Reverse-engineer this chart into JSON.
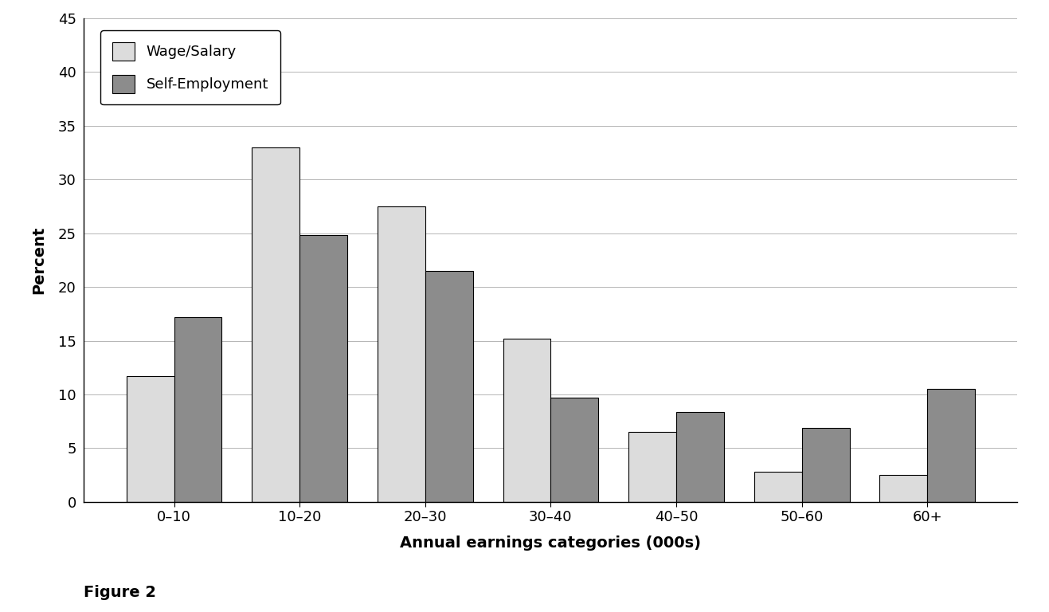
{
  "categories": [
    "0–10",
    "10–20",
    "20–30",
    "30–40",
    "40–50",
    "50–60",
    "60+"
  ],
  "wage_salary": [
    11.7,
    33.0,
    27.5,
    15.2,
    6.5,
    2.8,
    2.5
  ],
  "self_employment": [
    17.2,
    24.8,
    21.5,
    9.7,
    8.4,
    6.9,
    10.5
  ],
  "wage_color": "#dcdcdc",
  "self_color": "#8c8c8c",
  "xlabel": "Annual earnings categories (000s)",
  "ylabel": "Percent",
  "ylim": [
    0,
    45
  ],
  "yticks": [
    0,
    5,
    10,
    15,
    20,
    25,
    30,
    35,
    40,
    45
  ],
  "legend_labels": [
    "Wage/Salary",
    "Self-Employment"
  ],
  "figure_label": "Figure 2",
  "bar_width": 0.38,
  "background_color": "#ffffff",
  "axis_fontsize": 14,
  "tick_fontsize": 13,
  "legend_fontsize": 13,
  "ylabel_fontsize": 14
}
